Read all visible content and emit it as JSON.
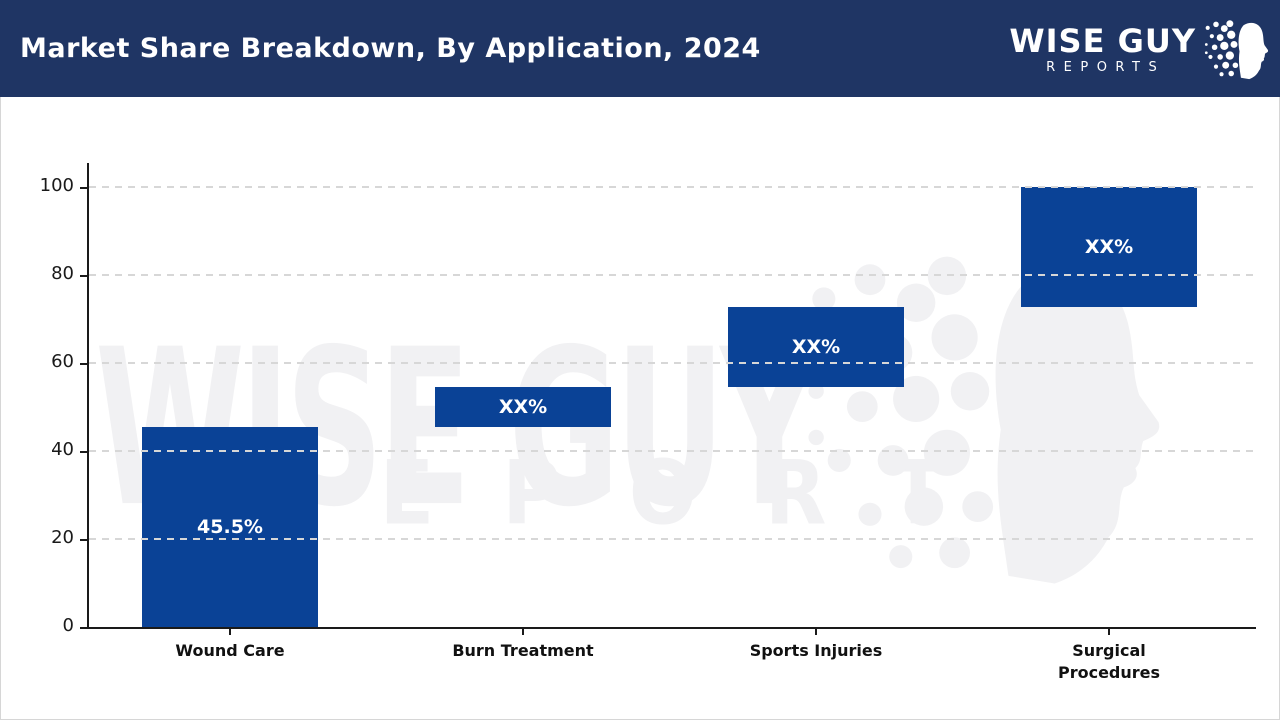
{
  "header": {
    "title": "Market Share Breakdown, By Application, 2024",
    "logo": {
      "name": "WISE GUY",
      "tagline": "REPORTS"
    }
  },
  "watermark": {
    "line1": "WISE GUY",
    "line2": "REPORTS"
  },
  "chart_data": {
    "type": "bar",
    "variant": "waterfall",
    "title": "Market Share Breakdown, By Application, 2024",
    "categories": [
      "Wound Care",
      "Burn Treatment",
      "Sports Injuries",
      "Surgical\nProcedures"
    ],
    "bars": [
      {
        "category": "Wound Care",
        "label": "45.5%",
        "start": 0,
        "end": 45.5
      },
      {
        "category": "Burn Treatment",
        "label": "XX%",
        "start": 45.5,
        "end": 54.5
      },
      {
        "category": "Sports Injuries",
        "label": "XX%",
        "start": 54.5,
        "end": 72.7
      },
      {
        "category": "Surgical Procedures",
        "label": "XX%",
        "start": 72.7,
        "end": 100
      }
    ],
    "xlabel": "",
    "ylabel": "",
    "ylim": [
      0,
      100
    ],
    "yticks": [
      0,
      20,
      40,
      60,
      80,
      100
    ],
    "grid": {
      "horizontal": true,
      "style": "dashed",
      "over_bars": true
    },
    "legend": "none",
    "colors": {
      "bar": "#0a4296",
      "bar_label": "#ffffff",
      "header_bg": "#1f3564",
      "axis": "#1a1a1a",
      "gridline": "#d7d7d7",
      "watermark": "#f1f1f3"
    }
  }
}
